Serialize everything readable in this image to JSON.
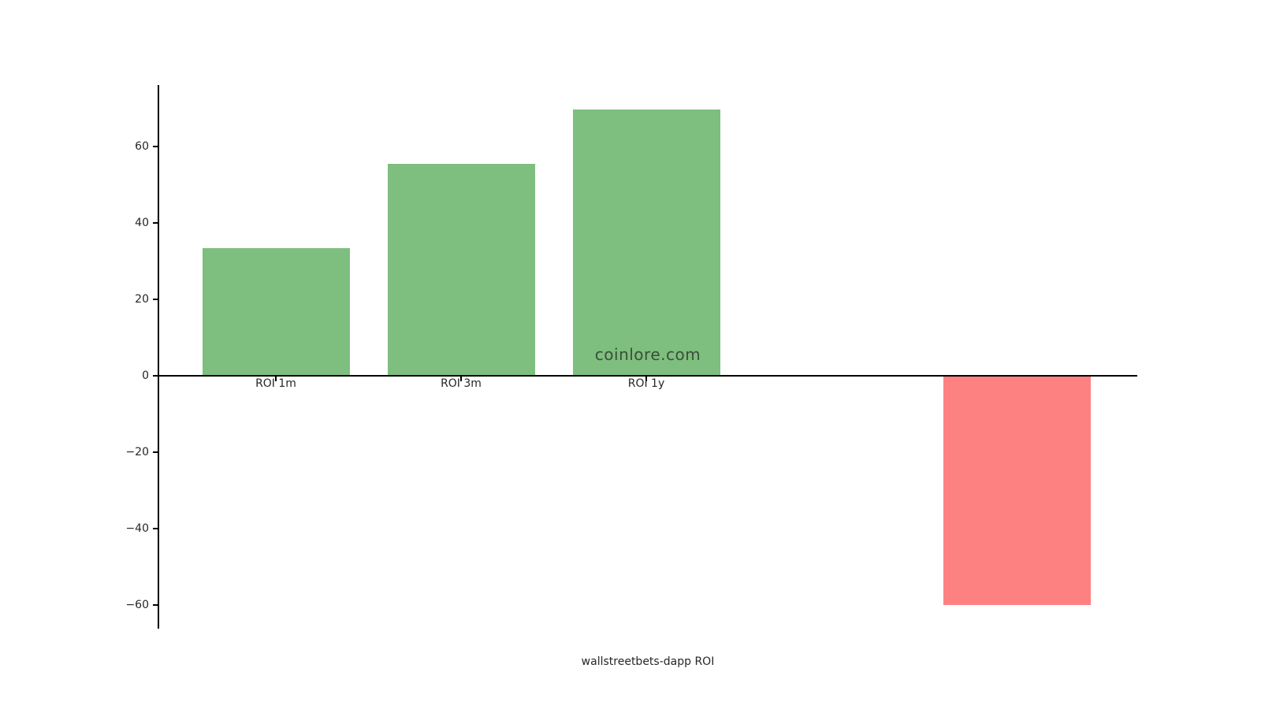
{
  "chart_data": {
    "type": "bar",
    "title": "wallstreetbets-dapp ROI",
    "title_position": "bottom",
    "watermark": "coinlore.com",
    "bars": [
      {
        "label": "ROI 1m",
        "value": 33.5,
        "slot": 0,
        "color": "#7ebe7e"
      },
      {
        "label": "ROI 3m",
        "value": 55.5,
        "slot": 1,
        "color": "#7ebe7e"
      },
      {
        "label": "ROI 1y",
        "value": 69.7,
        "slot": 2,
        "color": "#7ebe7e"
      },
      {
        "label": "",
        "value": -60,
        "slot": 4,
        "color": "#fd8181"
      }
    ],
    "positive_color": "#7ebe7e",
    "negative_color": "#fd8181",
    "y_ticks": [
      {
        "value": 60,
        "label": "60"
      },
      {
        "value": 40,
        "label": "40"
      },
      {
        "value": 20,
        "label": "20"
      },
      {
        "value": 0,
        "label": "0"
      },
      {
        "value": -20,
        "label": "−20"
      },
      {
        "value": -40,
        "label": "−40"
      },
      {
        "value": -60,
        "label": "−60"
      }
    ],
    "ylim": [
      -66,
      76
    ],
    "xlabel": "",
    "ylabel": "",
    "grid": false,
    "legend": false,
    "zero_line": true,
    "background": "#ffffff",
    "axis_color": "#000000",
    "text_color": "#262626"
  }
}
